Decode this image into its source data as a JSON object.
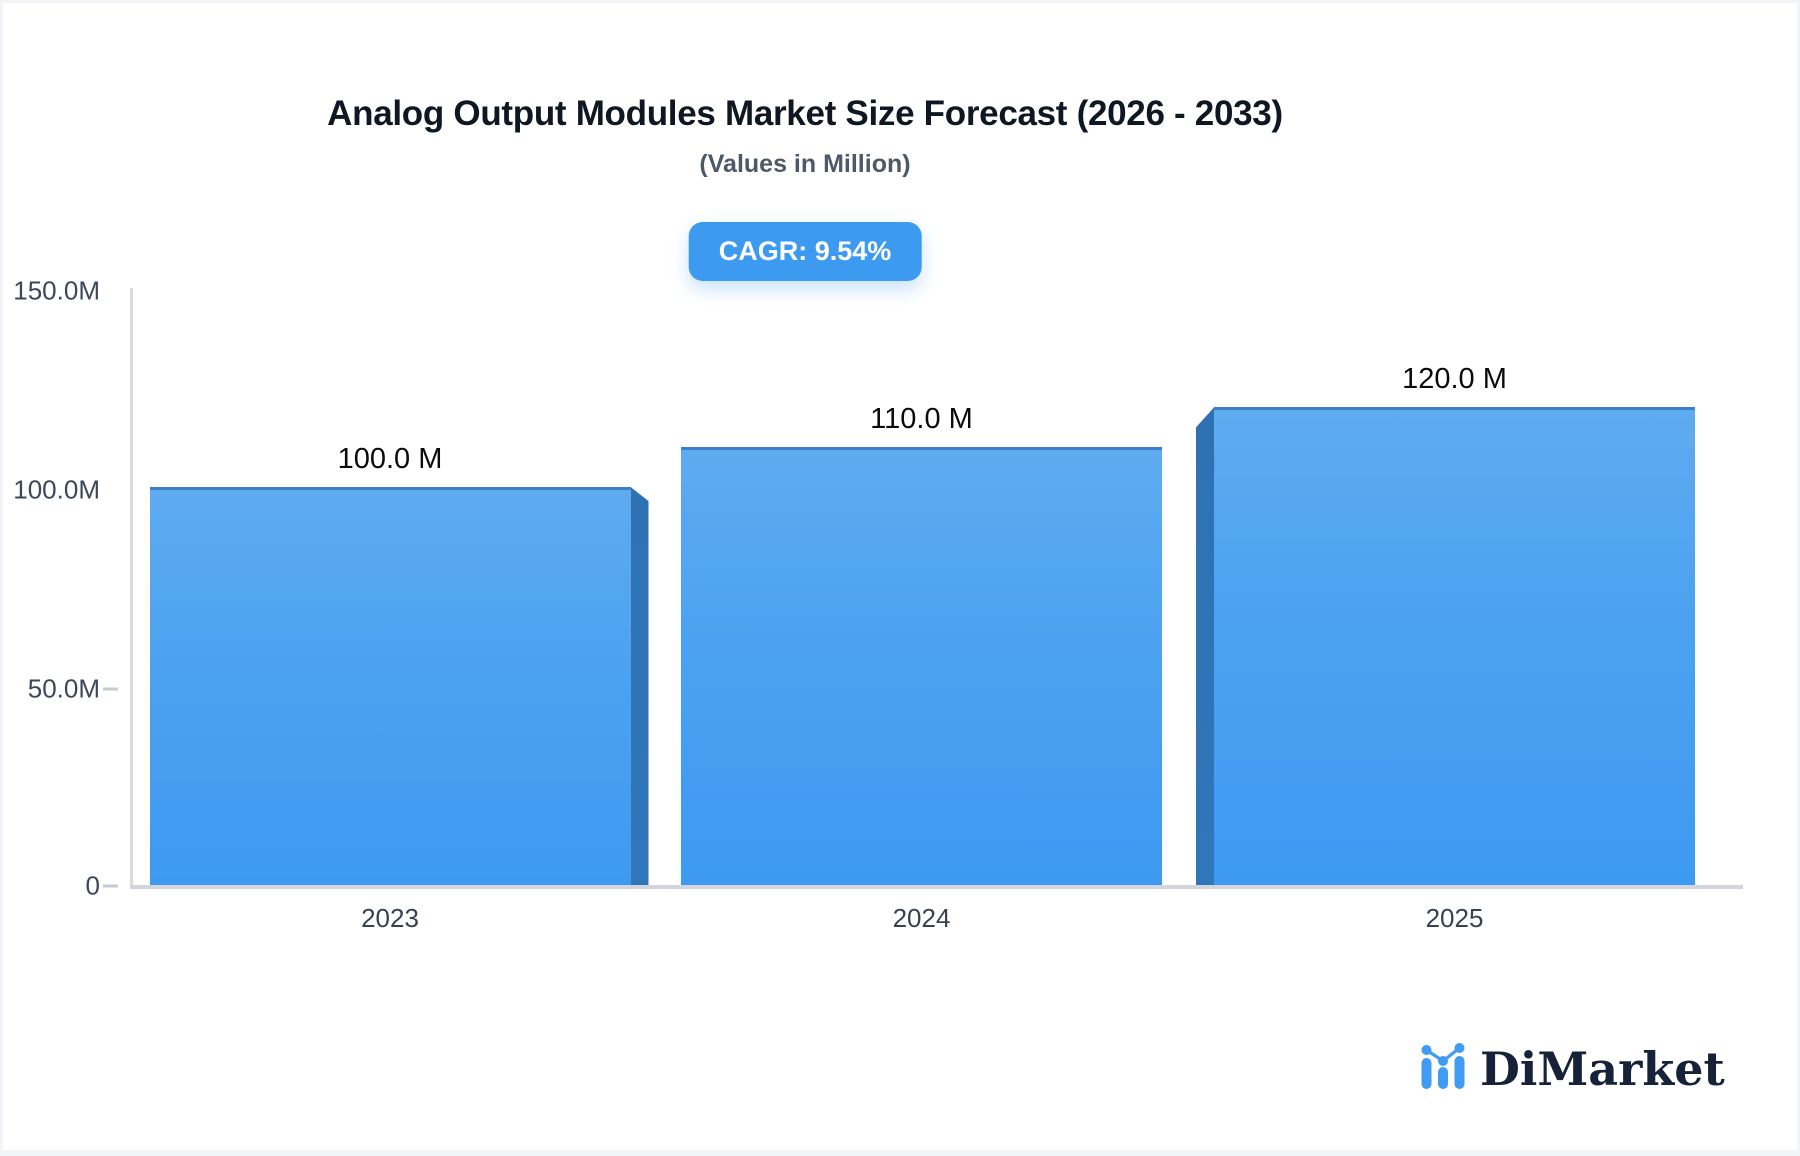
{
  "header": {
    "title": "Analog Output Modules Market Size Forecast (2026 - 2033)",
    "subtitle": "(Values in Million)",
    "cagr_label": "CAGR: 9.54%"
  },
  "chart_data": {
    "type": "bar",
    "categories": [
      "2023",
      "2024",
      "2025"
    ],
    "values": [
      100.0,
      110.0,
      120.0
    ],
    "value_labels": [
      "100.0 M",
      "110.0 M",
      "120.0 M"
    ],
    "title": "Analog Output Modules Market Size Forecast (2026 - 2033)",
    "subtitle": "(Values in Million)",
    "unit": "Million",
    "xlabel": "",
    "ylabel": "",
    "ylim": [
      0,
      150
    ],
    "y_axis": {
      "tick_labels": [
        "150.0M",
        "100.0M",
        "50.0M",
        "0"
      ],
      "tick_values": [
        150,
        100,
        50,
        0
      ],
      "show_dash": [
        false,
        false,
        true,
        true
      ]
    },
    "grid": false,
    "legend": false,
    "style": {
      "bar_top_color": "#5fabf0",
      "bar_bottom_color": "#3e99f1",
      "bar_edge_color": "#3a7fc8",
      "bar_side_color": "#2e72b4",
      "axis_color": "#d3d5db"
    }
  },
  "badge": {
    "color": "#3d9af1",
    "text_color": "#ffffff"
  },
  "branding": {
    "logo_text": "DiMarket",
    "logo_icon": "bar-line-chart-icon",
    "logo_icon_color": "#3f9bf3",
    "logo_text_color": "#152238"
  }
}
